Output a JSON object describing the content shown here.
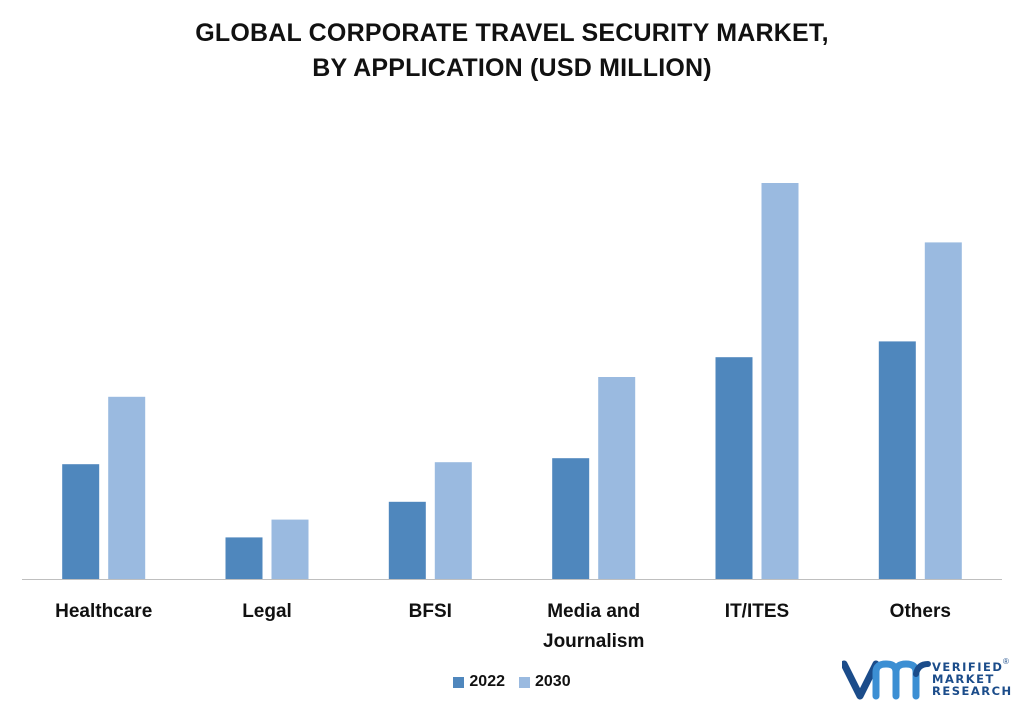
{
  "title_line1": "GLOBAL CORPORATE TRAVEL SECURITY MARKET,",
  "title_line2": "BY APPLICATION (USD MILLION)",
  "legend": {
    "items": [
      {
        "label": "2022",
        "color": "#4f87bd"
      },
      {
        "label": "2030",
        "color": "#9abae0"
      }
    ]
  },
  "logo": {
    "line1": "VERIFIED",
    "line2": "MARKET",
    "line3": "RESEARCH",
    "reg": "®",
    "colors": [
      "#1b4c8a",
      "#3c8fd3"
    ]
  },
  "chart_data": {
    "type": "bar",
    "title": "GLOBAL CORPORATE TRAVEL SECURITY MARKET, BY APPLICATION (USD MILLION)",
    "categories": [
      "Healthcare",
      "Legal",
      "BFSI",
      "Media and Journalism",
      "IT/ITES",
      "Others"
    ],
    "category_lines": [
      [
        "Healthcare"
      ],
      [
        "Legal"
      ],
      [
        "BFSI"
      ],
      [
        "Media and",
        "Journalism"
      ],
      [
        "IT/ITES"
      ],
      [
        "Others"
      ]
    ],
    "series": [
      {
        "name": "2022",
        "color": "#4f87bd",
        "values": [
          29,
          10.5,
          19.5,
          30.5,
          56,
          60
        ]
      },
      {
        "name": "2030",
        "color": "#9abae0",
        "values": [
          46,
          15,
          29.5,
          51,
          100,
          85
        ]
      }
    ],
    "ylim": [
      0,
      100
    ],
    "grid": false,
    "y_axis_visible": false,
    "legend_position": "bottom"
  }
}
